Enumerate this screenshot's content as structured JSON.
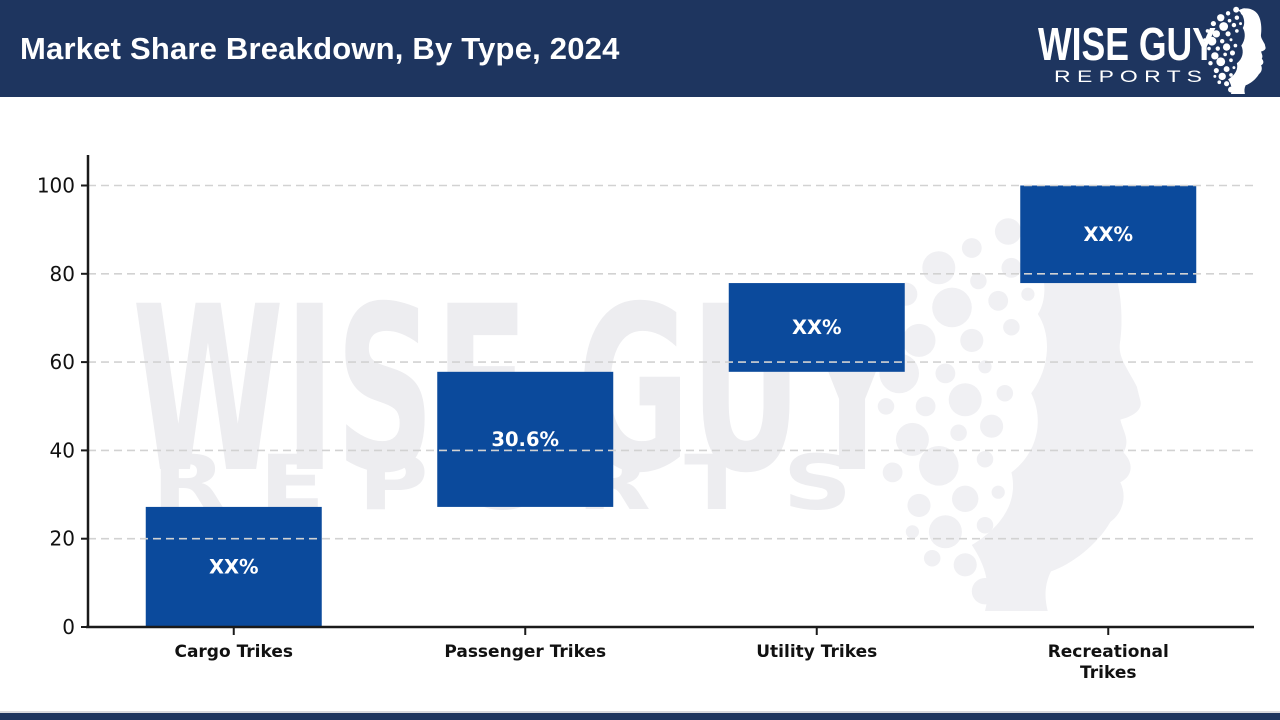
{
  "header": {
    "title": "Market Share Breakdown, By Type, 2024",
    "logo": {
      "line1": "WISE GUY",
      "line2": "R E P O R T S"
    }
  },
  "watermark": {
    "line1": "WISE GUY",
    "line2": "R E P O R T S"
  },
  "colors": {
    "header_bg": "#1e355f",
    "header_text": "#ffffff",
    "bar": "#0b4a9c",
    "bar_label": "#ffffff",
    "grid": "#d2d2d2",
    "axis": "#1a1a1a",
    "tick_label": "#111111",
    "category_label": "#111111",
    "watermark_text": "#ededf0",
    "watermark_face": "#f0f0f3",
    "footer_bar": "#1e355f"
  },
  "chart_data": {
    "type": "bar",
    "subtype": "waterfall",
    "title": "Market Share Breakdown, By Type, 2024",
    "xlabel": "",
    "ylabel": "",
    "ylim": [
      0,
      100
    ],
    "yticks": [
      0,
      20,
      40,
      60,
      80,
      100
    ],
    "grid": "horizontal-dashed",
    "legend": "none",
    "categories": [
      "Cargo Trikes",
      "Passenger Trikes",
      "Utility Trikes",
      "Recreational\nTrikes"
    ],
    "series": [
      {
        "name": "Market Share %",
        "segments": [
          {
            "category": "Cargo Trikes",
            "start": 0,
            "end": 27.2,
            "value": 27.2,
            "label": "XX%"
          },
          {
            "category": "Passenger Trikes",
            "start": 27.2,
            "end": 57.8,
            "value": 30.6,
            "label": "30.6%"
          },
          {
            "category": "Utility Trikes",
            "start": 57.8,
            "end": 77.9,
            "value": 20.1,
            "label": "XX%"
          },
          {
            "category": "Recreational Trikes",
            "start": 77.9,
            "end": 100,
            "value": 22.1,
            "label": "XX%"
          }
        ]
      }
    ]
  }
}
